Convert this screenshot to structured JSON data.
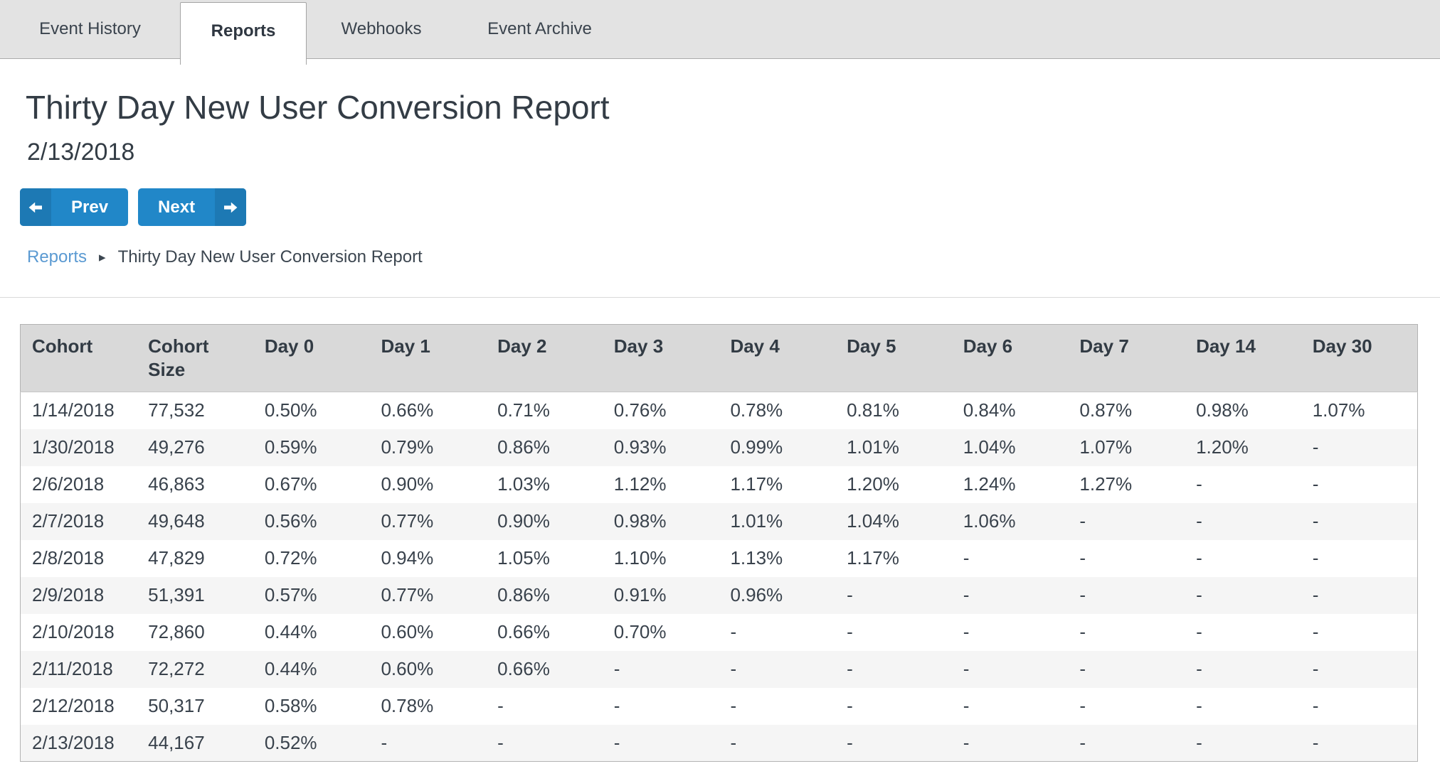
{
  "tabs": {
    "items": [
      {
        "label": "Event History",
        "active": false
      },
      {
        "label": "Reports",
        "active": true
      },
      {
        "label": "Webhooks",
        "active": false
      },
      {
        "label": "Event Archive",
        "active": false
      }
    ]
  },
  "page": {
    "title": "Thirty Day New User Conversion Report",
    "date": "2/13/2018"
  },
  "nav_buttons": {
    "prev_label": "Prev",
    "next_label": "Next",
    "prev_icon": "arrow-left-icon",
    "next_icon": "arrow-right-icon"
  },
  "breadcrumb": {
    "link": "Reports",
    "separator": "▸",
    "current": "Thirty Day New User Conversion Report"
  },
  "colors": {
    "button_blue": "#2187c8",
    "button_blue_dark": "#1d79b4",
    "link_blue": "#5b9ad2",
    "header_bg": "#d9d9d9",
    "tabbar_bg": "#e3e3e3",
    "border": "#b3b3b3",
    "text_dark": "#39424c",
    "row_alt": "#f5f5f5"
  },
  "table": {
    "columns": [
      "Cohort",
      "Cohort Size",
      "Day 0",
      "Day 1",
      "Day 2",
      "Day 3",
      "Day 4",
      "Day 5",
      "Day 6",
      "Day 7",
      "Day 14",
      "Day 30"
    ],
    "rows": [
      [
        "1/14/2018",
        "77,532",
        "0.50%",
        "0.66%",
        "0.71%",
        "0.76%",
        "0.78%",
        "0.81%",
        "0.84%",
        "0.87%",
        "0.98%",
        "1.07%"
      ],
      [
        "1/30/2018",
        "49,276",
        "0.59%",
        "0.79%",
        "0.86%",
        "0.93%",
        "0.99%",
        "1.01%",
        "1.04%",
        "1.07%",
        "1.20%",
        "-"
      ],
      [
        "2/6/2018",
        "46,863",
        "0.67%",
        "0.90%",
        "1.03%",
        "1.12%",
        "1.17%",
        "1.20%",
        "1.24%",
        "1.27%",
        "-",
        "-"
      ],
      [
        "2/7/2018",
        "49,648",
        "0.56%",
        "0.77%",
        "0.90%",
        "0.98%",
        "1.01%",
        "1.04%",
        "1.06%",
        "-",
        "-",
        "-"
      ],
      [
        "2/8/2018",
        "47,829",
        "0.72%",
        "0.94%",
        "1.05%",
        "1.10%",
        "1.13%",
        "1.17%",
        "-",
        "-",
        "-",
        "-"
      ],
      [
        "2/9/2018",
        "51,391",
        "0.57%",
        "0.77%",
        "0.86%",
        "0.91%",
        "0.96%",
        "-",
        "-",
        "-",
        "-",
        "-"
      ],
      [
        "2/10/2018",
        "72,860",
        "0.44%",
        "0.60%",
        "0.66%",
        "0.70%",
        "-",
        "-",
        "-",
        "-",
        "-",
        "-"
      ],
      [
        "2/11/2018",
        "72,272",
        "0.44%",
        "0.60%",
        "0.66%",
        "-",
        "-",
        "-",
        "-",
        "-",
        "-",
        "-"
      ],
      [
        "2/12/2018",
        "50,317",
        "0.58%",
        "0.78%",
        "-",
        "-",
        "-",
        "-",
        "-",
        "-",
        "-",
        "-"
      ],
      [
        "2/13/2018",
        "44,167",
        "0.52%",
        "-",
        "-",
        "-",
        "-",
        "-",
        "-",
        "-",
        "-",
        "-"
      ]
    ]
  }
}
